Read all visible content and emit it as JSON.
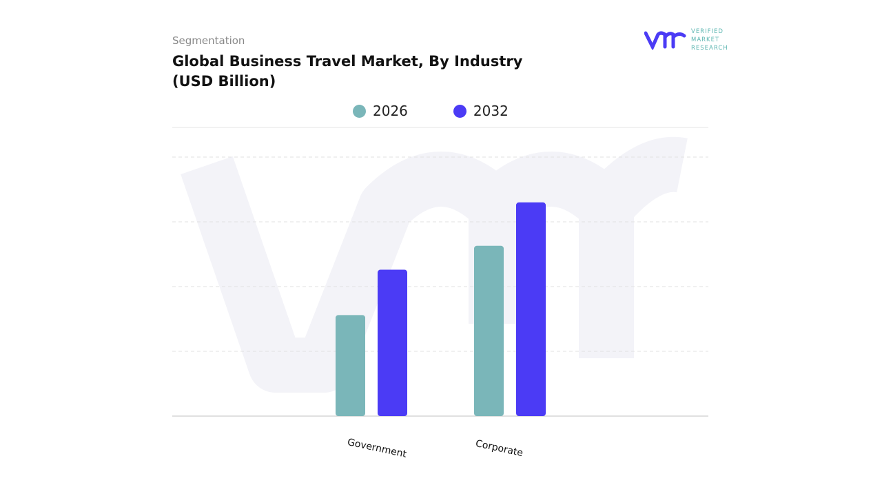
{
  "header": {
    "segment_label": "Segmentation",
    "logo_text": [
      "VERIFIED",
      "MARKET",
      "RESEARCH"
    ]
  },
  "chart_data": {
    "type": "bar",
    "title": "Global Business Travel Market, By Industry (USD Billion)",
    "categories": [
      "Government",
      "Corporate"
    ],
    "series": [
      {
        "name": "2026",
        "values": [
          1.56,
          2.63
        ],
        "color": "#7ab6b9"
      },
      {
        "name": "2032",
        "values": [
          2.26,
          3.3
        ],
        "color": "#4b3bf5"
      }
    ],
    "ylim": [
      0,
      4
    ],
    "grid": true,
    "legend": "top",
    "xlabel": "",
    "ylabel": ""
  }
}
